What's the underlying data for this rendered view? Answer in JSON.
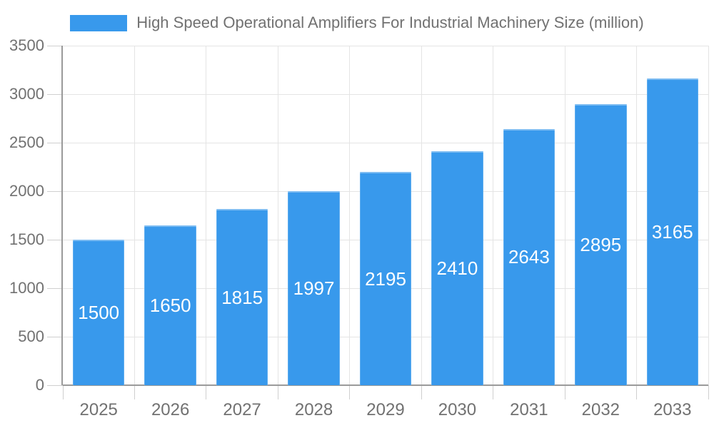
{
  "legend": {
    "label": "High Speed Operational Amplifiers For Industrial Machinery Size (million)"
  },
  "chart_data": {
    "type": "bar",
    "title": "High Speed Operational Amplifiers For Industrial Machinery Size (million)",
    "categories": [
      "2025",
      "2026",
      "2027",
      "2028",
      "2029",
      "2030",
      "2031",
      "2032",
      "2033"
    ],
    "values": [
      1500,
      1650,
      1815,
      1997,
      2195,
      2410,
      2643,
      2895,
      3165
    ],
    "bar_value_labels": [
      "1500",
      "1650",
      "1815",
      "1997",
      "2195",
      "2410",
      "2643",
      "2895",
      "3165"
    ],
    "xlabel": "",
    "ylabel": "",
    "ylim": [
      0,
      3500
    ],
    "ytick_step": 500,
    "y_tick_labels": [
      "0",
      "500",
      "1000",
      "1500",
      "2000",
      "2500",
      "3000",
      "3500"
    ],
    "grid": true,
    "legend_position": "top",
    "colors": {
      "bar": "#3899EC",
      "bar_label": "#ffffff",
      "axis_text": "#717171",
      "grid_line": "#e4e4e4",
      "tick_mark": "#cfcfcf",
      "axis_line": "#9a9a9a"
    }
  }
}
